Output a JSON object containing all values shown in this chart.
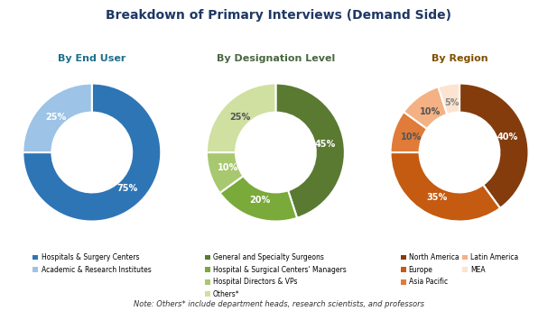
{
  "title": "Breakdown of Primary Interviews (Demand Side)",
  "title_color": "#1f3864",
  "note": "Note: Others* include department heads, research scientists, and professors",
  "chart1_title": "By End User",
  "chart1_title_color": "#1f6e8c",
  "chart1_values": [
    75,
    25
  ],
  "chart1_labels": [
    "75%",
    "25%"
  ],
  "chart1_colors": [
    "#2e75b6",
    "#9dc3e6"
  ],
  "chart1_label_colors": [
    "white",
    "white"
  ],
  "chart1_legend": [
    "Hospitals & Surgery Centers",
    "Academic & Research Institutes"
  ],
  "chart2_title": "By Designation Level",
  "chart2_title_color": "#4a6741",
  "chart2_values": [
    45,
    20,
    10,
    25
  ],
  "chart2_labels": [
    "45%",
    "20%",
    "10%",
    "25%"
  ],
  "chart2_colors": [
    "#5a7a32",
    "#7aaa3a",
    "#a8c870",
    "#cfe0a0"
  ],
  "chart2_label_colors": [
    "white",
    "white",
    "white",
    "#555555"
  ],
  "chart2_legend": [
    "General and Specialty Surgeons",
    "Hospital & Surgical Centers' Managers",
    "Hospital Directors & VPs",
    "Others*"
  ],
  "chart3_title": "By Region",
  "chart3_title_color": "#7f4f00",
  "chart3_values": [
    40,
    35,
    10,
    10,
    5
  ],
  "chart3_labels": [
    "40%",
    "35%",
    "10%",
    "10%",
    "5%"
  ],
  "chart3_colors": [
    "#843c0c",
    "#c55a11",
    "#e07b39",
    "#f4b183",
    "#fce4d0"
  ],
  "chart3_label_colors": [
    "white",
    "white",
    "#555555",
    "#555555",
    "#888888"
  ],
  "chart3_legend": [
    "North America",
    "Europe",
    "Asia Pacific",
    "Latin America",
    "MEA"
  ],
  "chart3_legend_colors": [
    "#843c0c",
    "#c55a11",
    "#e07b39",
    "#f4b183",
    "#fce4d0"
  ],
  "background_color": "#ffffff",
  "wedge_edge_color": "white",
  "wedge_linewidth": 1.5
}
